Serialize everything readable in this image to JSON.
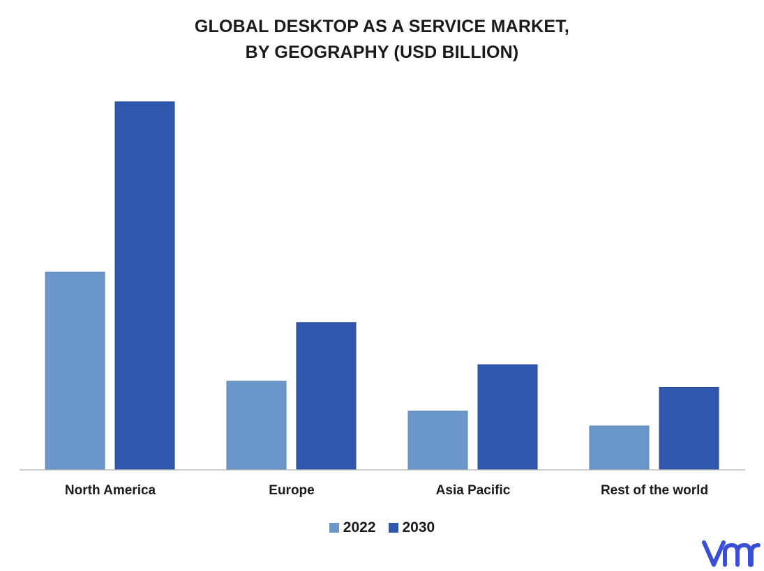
{
  "title_line1": "GLOBAL DESKTOP AS A SERVICE MARKET,",
  "title_line2": "BY GEOGRAPHY (USD BILLION)",
  "colors": {
    "series_2022": "#6a96c9",
    "series_2030": "#2e57ad",
    "axis": "#bfbfbf",
    "logo": "#3a4fd6"
  },
  "logo_icon": "vmr-logo-icon",
  "chart_data": {
    "type": "bar",
    "categories": [
      "North America",
      "Europe",
      "Asia Pacific",
      "Rest of the world"
    ],
    "series": [
      {
        "name": "2022",
        "values": [
          5.15,
          2.3,
          1.52,
          1.13
        ]
      },
      {
        "name": "2030",
        "values": [
          9.6,
          3.83,
          2.73,
          2.14
        ]
      }
    ],
    "ylim": [
      0,
      10
    ],
    "grid": false,
    "legend": "bottom-center"
  }
}
